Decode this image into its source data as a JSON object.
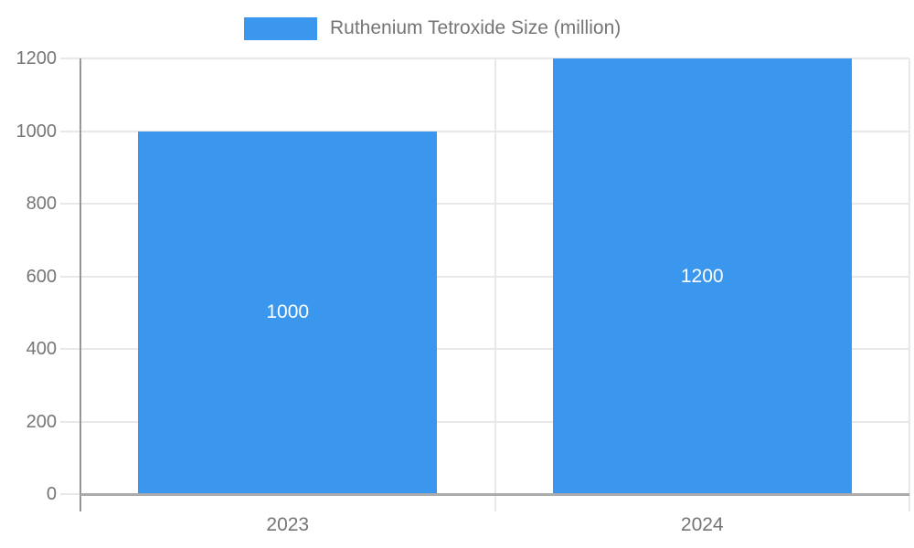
{
  "chart": {
    "legend": {
      "label": "Ruthenium Tetroxide Size (million)"
    },
    "colors": {
      "bar": "#3b97ee",
      "text": "#757575",
      "value_label": "#ffffff",
      "gridline": "#e8e8e8",
      "y_axis": "#969696",
      "x_axis": "#ababab",
      "background": "#ffffff"
    }
  },
  "chart_data": {
    "type": "bar",
    "categories": [
      "2023",
      "2024"
    ],
    "series": [
      {
        "name": "Ruthenium Tetroxide Size (million)",
        "values": [
          1000,
          1200
        ]
      }
    ],
    "value_labels": [
      "1000",
      "1200"
    ],
    "title": "",
    "xlabel": "",
    "ylabel": "",
    "ylim": [
      0,
      1200
    ],
    "yticks": [
      0,
      200,
      400,
      600,
      800,
      1000,
      1200
    ],
    "grid": true,
    "legend_position": "top",
    "bar_label_position": "center"
  }
}
